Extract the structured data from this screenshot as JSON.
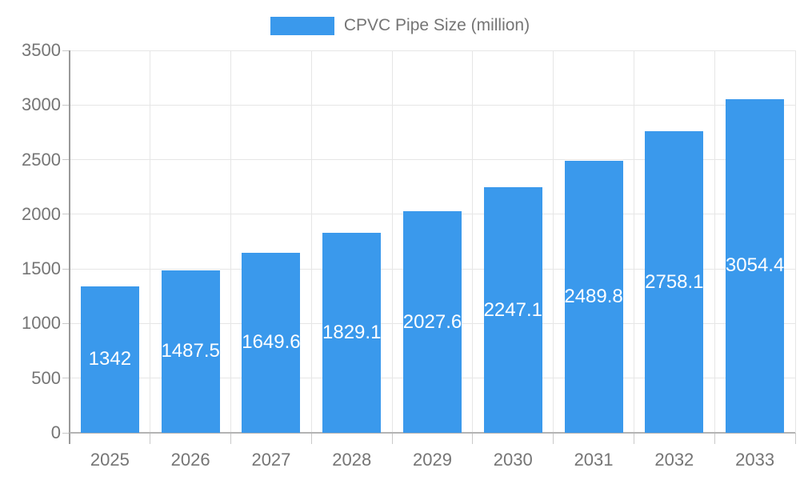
{
  "chart_data": {
    "type": "bar",
    "title": "CPVC Pipe Size (million)",
    "categories": [
      "2025",
      "2026",
      "2027",
      "2028",
      "2029",
      "2030",
      "2031",
      "2032",
      "2033"
    ],
    "values": [
      1342,
      1487.5,
      1649.6,
      1829.1,
      2027.6,
      2247.1,
      2489.8,
      2758.1,
      3054.4
    ],
    "value_labels": [
      "1342",
      "1487.5",
      "1649.6",
      "1829.1",
      "2027.6",
      "2247.1",
      "2489.8",
      "2758.1",
      "3054.4"
    ],
    "y_ticks": [
      0,
      500,
      1000,
      1500,
      2000,
      2500,
      3000,
      3500
    ],
    "ylim": [
      0,
      3500
    ],
    "legend_position": "top",
    "grid": true,
    "colors": {
      "bar": "#3a99ec",
      "axis_label": "#757575",
      "gridline": "#e6e6e6",
      "tick": "#c9c9c9",
      "y_axis_line": "#999999",
      "x_axis_line": "#b3b3b3",
      "value_label": "#ffffff"
    }
  }
}
